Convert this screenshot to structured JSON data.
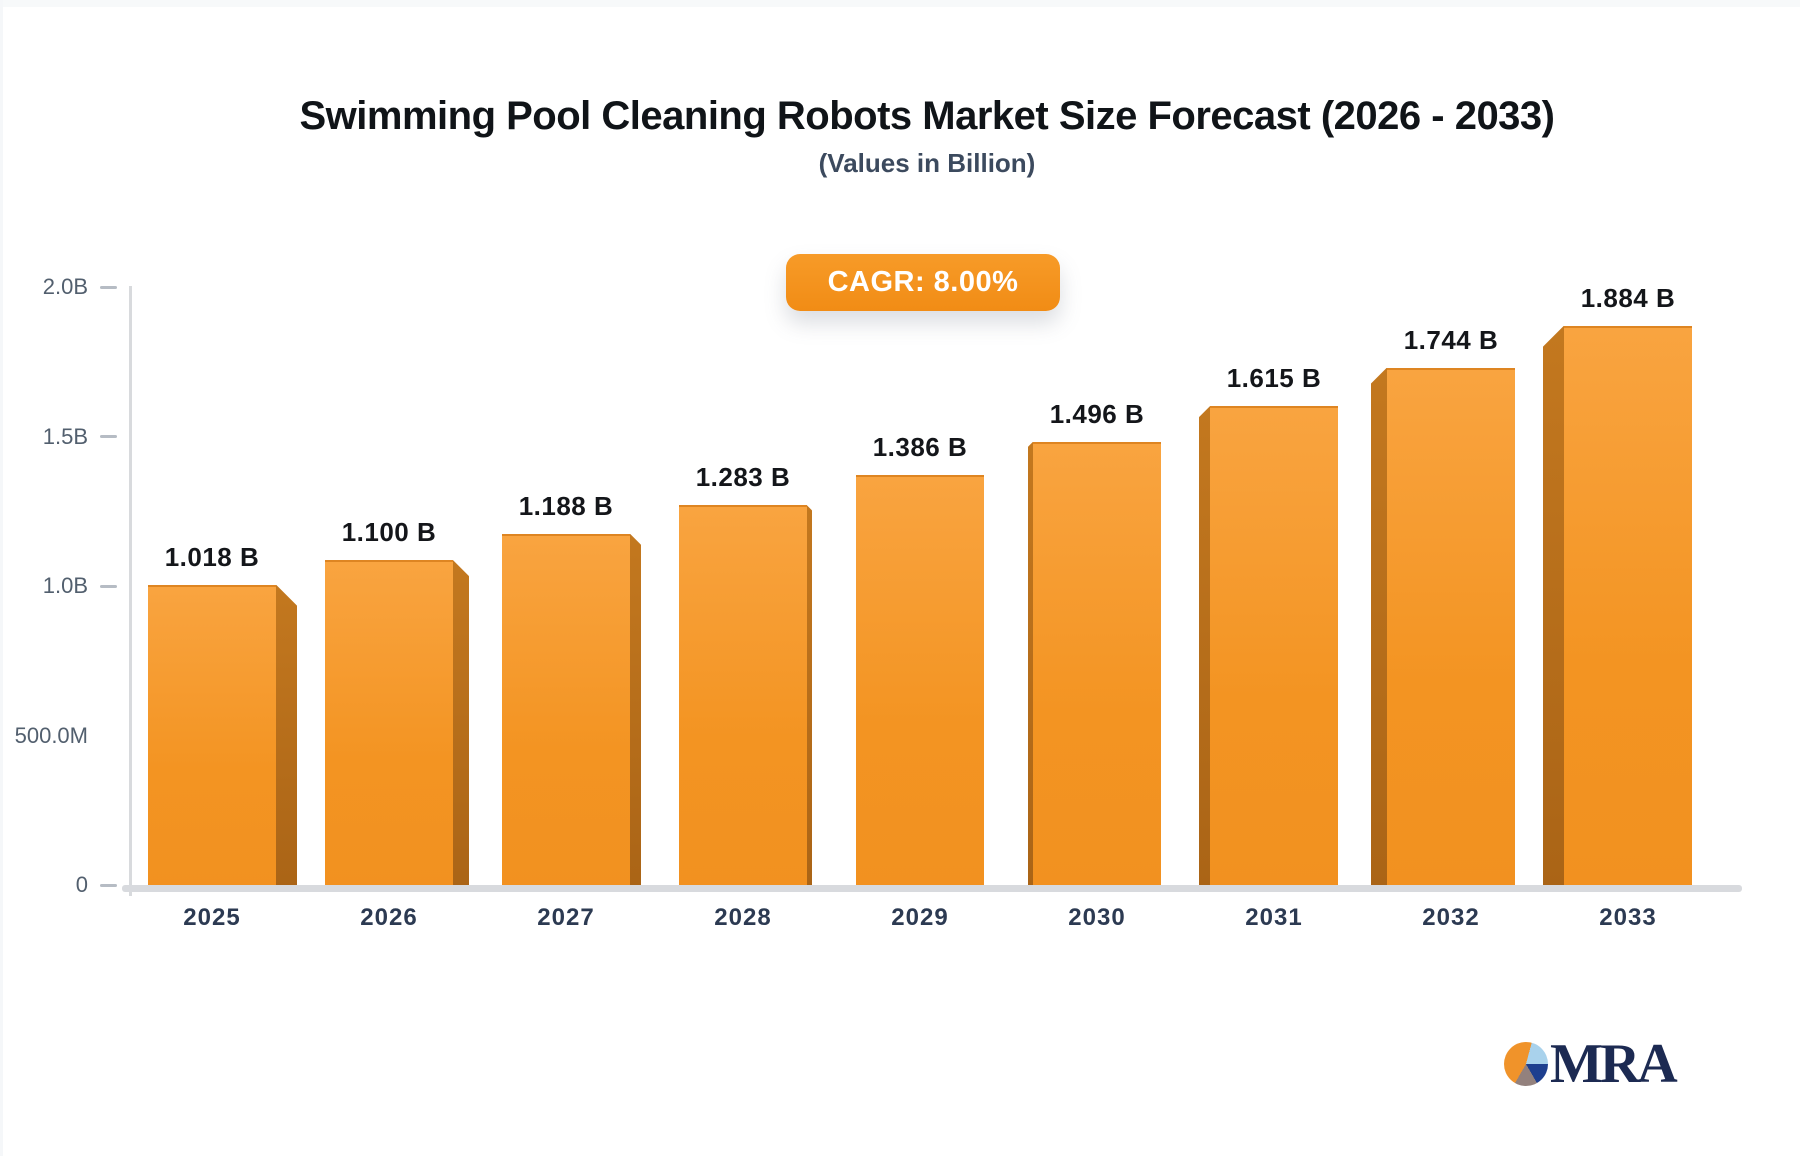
{
  "title": "Swimming Pool Cleaning Robots Market Size Forecast (2026 - 2033)",
  "subtitle": "(Values in Billion)",
  "badge": {
    "label": "CAGR: 8.00%"
  },
  "colors": {
    "accent_orange": "#f3941f",
    "bar_face_top": "#f9a440",
    "bar_face_bottom": "#f29120",
    "bar_side": "#b86e1e",
    "axis_gray": "#d8dadd",
    "tick_gray": "#b6bcc4",
    "y_label_text": "#525f6e",
    "x_label_text": "#2c3a52",
    "value_label_text": "#14161a",
    "badge_text": "#ffffff",
    "logo_navy": "#1c2a52",
    "logo_lightblue": "#a9d2ec",
    "logo_gray": "#93817d"
  },
  "chart_data": {
    "type": "bar",
    "title": "Swimming Pool Cleaning Robots Market Size Forecast (2026 - 2033)",
    "subtitle": "(Values in Billion)",
    "cagr": "8.00%",
    "unit": "Billion USD",
    "categories": [
      "2025",
      "2026",
      "2027",
      "2028",
      "2029",
      "2030",
      "2031",
      "2032",
      "2033"
    ],
    "values": [
      1.018,
      1.1,
      1.188,
      1.283,
      1.386,
      1.496,
      1.615,
      1.744,
      1.884
    ],
    "value_labels": [
      "1.018 B",
      "1.100 B",
      "1.188 B",
      "1.283 B",
      "1.386 B",
      "1.496 B",
      "1.615 B",
      "1.744 B",
      "1.884 B"
    ],
    "ylim": [
      0,
      2.0
    ],
    "y_ticks": [
      {
        "label": "2.0B",
        "value": 2.0,
        "dash": true
      },
      {
        "label": "1.5B",
        "value": 1.5,
        "dash": true
      },
      {
        "label": "1.0B",
        "value": 1.0,
        "dash": true
      },
      {
        "label": "500.0M",
        "value": 0.5,
        "dash": false
      },
      {
        "label": "0",
        "value": 0.0,
        "dash": true
      }
    ],
    "grid": false,
    "legend": "none",
    "bar_style": "3d-extruded, vanishing point at center column"
  },
  "logo": {
    "text": "MRA",
    "icon": "pie-chart"
  }
}
